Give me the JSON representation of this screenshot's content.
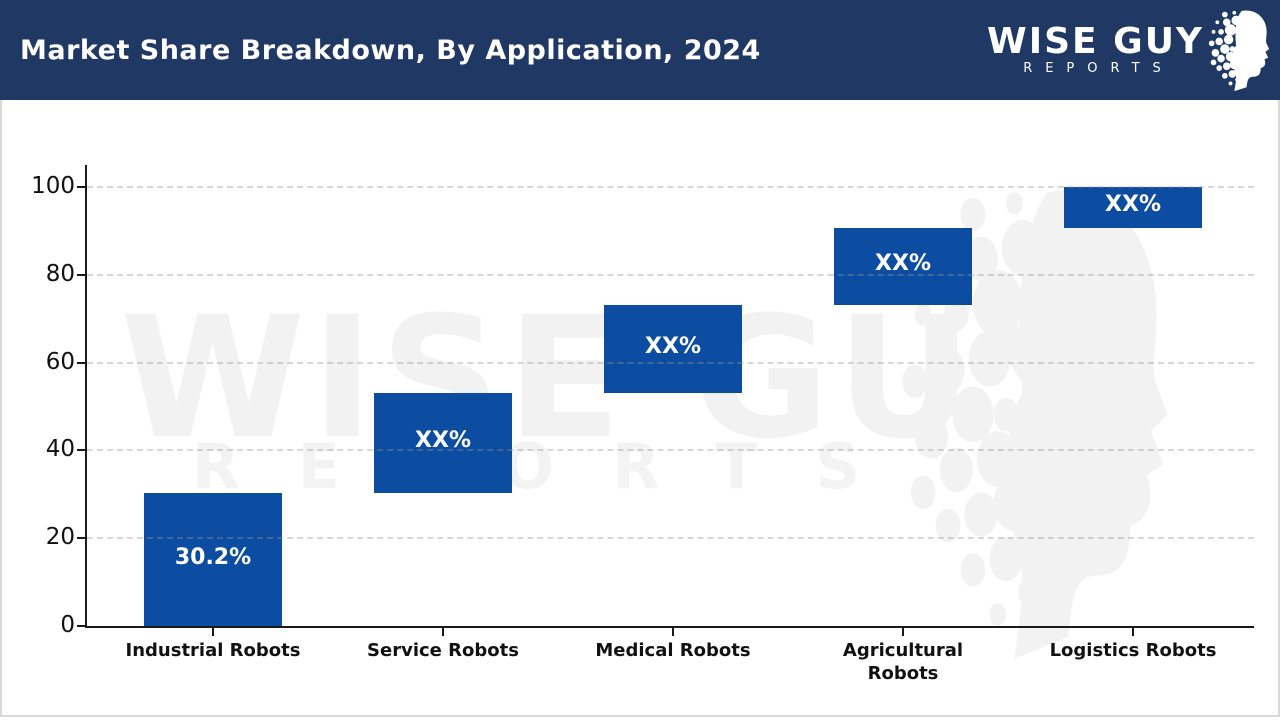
{
  "header": {
    "title": "Market Share Breakdown, By Application, 2024",
    "logo": {
      "line1": "WISE GUY",
      "line2": "REPORTS"
    }
  },
  "watermark": {
    "line1": "WISE GUY",
    "line2": "REPORTS"
  },
  "colors": {
    "header_bg": "#203864",
    "bar": "#0c4da2",
    "bar_label": "#ffffff",
    "axis": "#1a1a1a",
    "grid_dash": "#d4d4d4",
    "watermark": "#f2f2f2"
  },
  "chart_data": {
    "type": "bar",
    "subtype": "floating-segment-waterfall",
    "title": "Market Share Breakdown, By Application, 2024",
    "categories": [
      "Industrial Robots",
      "Service Robots",
      "Medical Robots",
      "Agricultural Robots",
      "Logistics Robots"
    ],
    "categories_display": [
      [
        "Industrial Robots"
      ],
      [
        "Service Robots"
      ],
      [
        "Medical Robots"
      ],
      [
        "Agricultural",
        "Robots"
      ],
      [
        "Logistics Robots"
      ]
    ],
    "series": [
      {
        "name": "Market share (%)",
        "segments": [
          {
            "category": "Industrial Robots",
            "start": 0,
            "end": 30.2,
            "label": "30.2%"
          },
          {
            "category": "Service Robots",
            "start": 30.2,
            "end": 53.0,
            "label": "XX%"
          },
          {
            "category": "Medical Robots",
            "start": 53.0,
            "end": 73.2,
            "label": "XX%"
          },
          {
            "category": "Agricultural Robots",
            "start": 73.2,
            "end": 90.7,
            "label": "XX%"
          },
          {
            "category": "Logistics Robots",
            "start": 90.7,
            "end": 100.0,
            "label": "XX%"
          }
        ]
      }
    ],
    "xlabel": "",
    "ylabel": "",
    "ylim": [
      0,
      105
    ],
    "yticks": [
      0,
      20,
      40,
      60,
      80,
      100
    ],
    "grid": "horizontal-dashed",
    "legend": "none"
  }
}
